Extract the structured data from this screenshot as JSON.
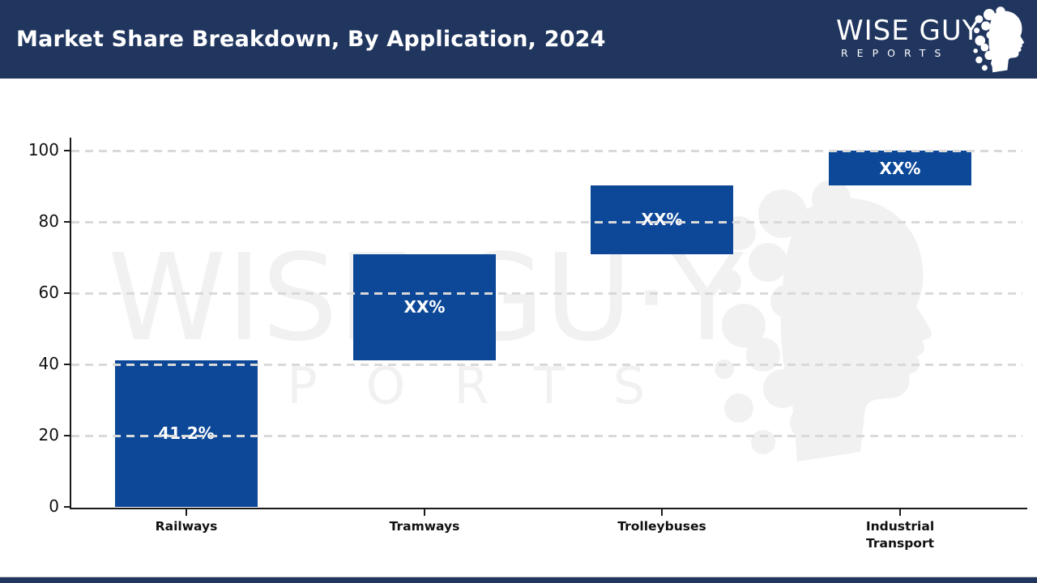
{
  "header": {
    "title": "Market Share Breakdown, By Application, 2024",
    "logo": {
      "line1": "WISE GUY",
      "line2": "REPORTS"
    }
  },
  "watermark": {
    "line1": "WISE GU·Y",
    "line2": "REPORTS"
  },
  "chart_data": {
    "type": "bar",
    "subtype": "waterfall",
    "title": "Market Share Breakdown, By Application, 2024",
    "categories": [
      "Railways",
      "Tramways",
      "Trolleybuses",
      "Industrial Transport"
    ],
    "segments": [
      {
        "category": "Railways",
        "start": 0,
        "end": 41.2,
        "label": "41.2%"
      },
      {
        "category": "Tramways",
        "start": 41.2,
        "end": 71.0,
        "label": "XX%"
      },
      {
        "category": "Trolleybuses",
        "start": 71.0,
        "end": 90.2,
        "label": "XX%"
      },
      {
        "category": "Industrial Transport",
        "start": 90.2,
        "end": 100,
        "label": "XX%"
      }
    ],
    "yticks": [
      0,
      20,
      40,
      60,
      80,
      100
    ],
    "ylim": [
      0,
      104
    ],
    "xlabel": "",
    "ylabel": "",
    "grid": "horizontal-dashed-over-bars",
    "legend": "none"
  },
  "colors": {
    "header_bg": "#21365f",
    "footer_bg": "#21365f",
    "bar": "#0d4898",
    "bar_label": "#ffffff",
    "gridline": "#d9d9d9",
    "axis": "#1a1a1a",
    "watermark": "#f1f1f2"
  }
}
